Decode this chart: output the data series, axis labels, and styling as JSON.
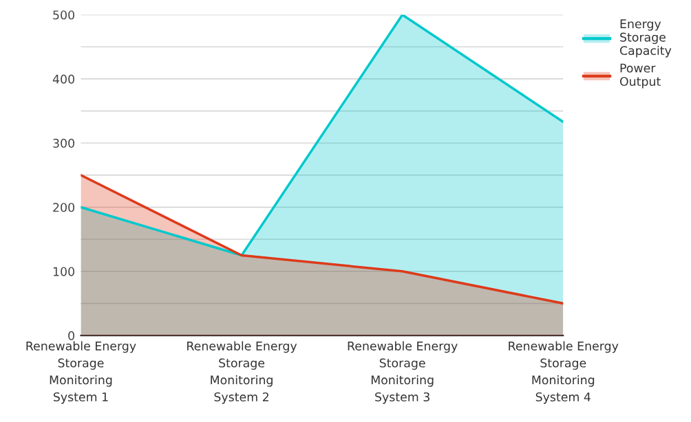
{
  "chart_data": {
    "type": "area",
    "categories": [
      "Renewable Energy Storage Monitoring System 1",
      "Renewable Energy Storage Monitoring System 2",
      "Renewable Energy Storage Monitoring System 3",
      "Renewable Energy Storage Monitoring System 4"
    ],
    "series": [
      {
        "name": "Energy Storage Capacity",
        "color": "#00c8cc",
        "values": [
          200,
          125,
          500,
          333
        ]
      },
      {
        "name": "Power Output",
        "color": "#dd3a1a",
        "values": [
          250,
          125,
          100,
          50
        ]
      }
    ],
    "ylim": [
      0,
      500
    ],
    "yticks": [
      0,
      {
        "value": 50,
        "label": null
      },
      100,
      {
        "value": 150,
        "label": null
      },
      200,
      {
        "value": 250,
        "label": null
      },
      300,
      {
        "value": 350,
        "label": null
      },
      400,
      {
        "value": 450,
        "label": null
      },
      500
    ],
    "grid": "y",
    "legend": "top right"
  }
}
